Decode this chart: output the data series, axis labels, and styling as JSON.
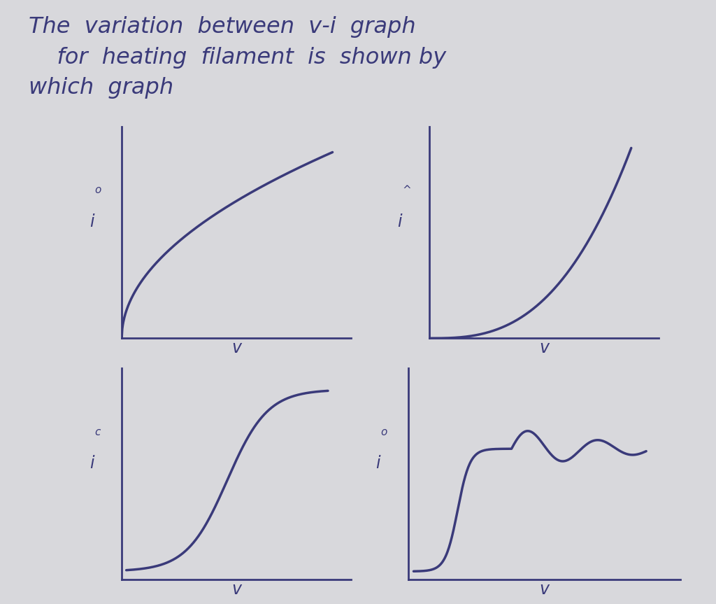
{
  "background_color": "#d8d8dc",
  "paper_color": "#d8d8dc",
  "text_color": "#3a3a7a",
  "curve_color": "#3a3a7a",
  "axis_color": "#3a3a7a",
  "linewidth": 2.0,
  "title_line1": "The  variation  between  v-i  graph",
  "title_line2": "    for  heating  filament  is  shown by",
  "title_line3": "which  graph",
  "title_fontsize": 23,
  "label_fontsize": 17,
  "small_fontsize": 11,
  "graph_a_label": "i",
  "graph_b_label": "i",
  "graph_c_label": "i",
  "graph_d_label": "i",
  "sup_a": "o",
  "sup_b": "^",
  "sup_c": "c",
  "sup_d": "o"
}
